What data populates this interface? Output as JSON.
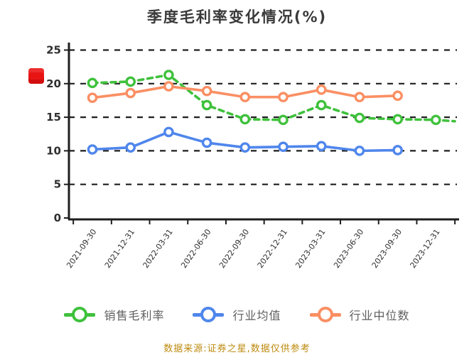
{
  "title": "季度毛利率变化情况(%)",
  "footer_note": "数据来源:证券之星,数据仅供参考",
  "colors": {
    "company_line": "#3fc13c",
    "industry_avg_line": "#4f86ec",
    "industry_median_line": "#fa8f63",
    "footer_text": "#bd8a0e",
    "annotation_badge": "#e81414",
    "grid": "#1e1e1e"
  },
  "y_axis_ticks": [
    "0",
    "5",
    "10",
    "15",
    "20",
    "25"
  ],
  "chart_data": {
    "type": "line",
    "title": "季度毛利率变化情况(%)",
    "xlabel": "",
    "ylabel": "",
    "ylim": [
      0,
      25
    ],
    "grid": "horizontal-dashed",
    "legend_position": "bottom",
    "categories": [
      "2021-09-30",
      "2021-12-31",
      "2022-03-31",
      "2022-06-30",
      "2022-09-30",
      "2022-12-31",
      "2023-03-31",
      "2023-06-30",
      "2023-09-30",
      "2023-12-31"
    ],
    "series": [
      {
        "name": "销售毛利率",
        "color": "#3fc13c",
        "line_style": "dashed",
        "values": [
          20.1,
          20.3,
          21.3,
          16.8,
          14.7,
          14.6,
          16.8,
          14.9,
          14.7,
          14.6
        ],
        "tail": 14.4
      },
      {
        "name": "行业均值",
        "color": "#4f86ec",
        "line_style": "solid",
        "values": [
          10.2,
          10.5,
          12.8,
          11.2,
          10.5,
          10.6,
          10.7,
          10.0,
          10.1
        ]
      },
      {
        "name": "行业中位数",
        "color": "#fa8f63",
        "line_style": "solid",
        "values": [
          17.9,
          18.6,
          19.6,
          18.9,
          18.0,
          18.0,
          19.1,
          18.0,
          18.2
        ]
      }
    ]
  }
}
